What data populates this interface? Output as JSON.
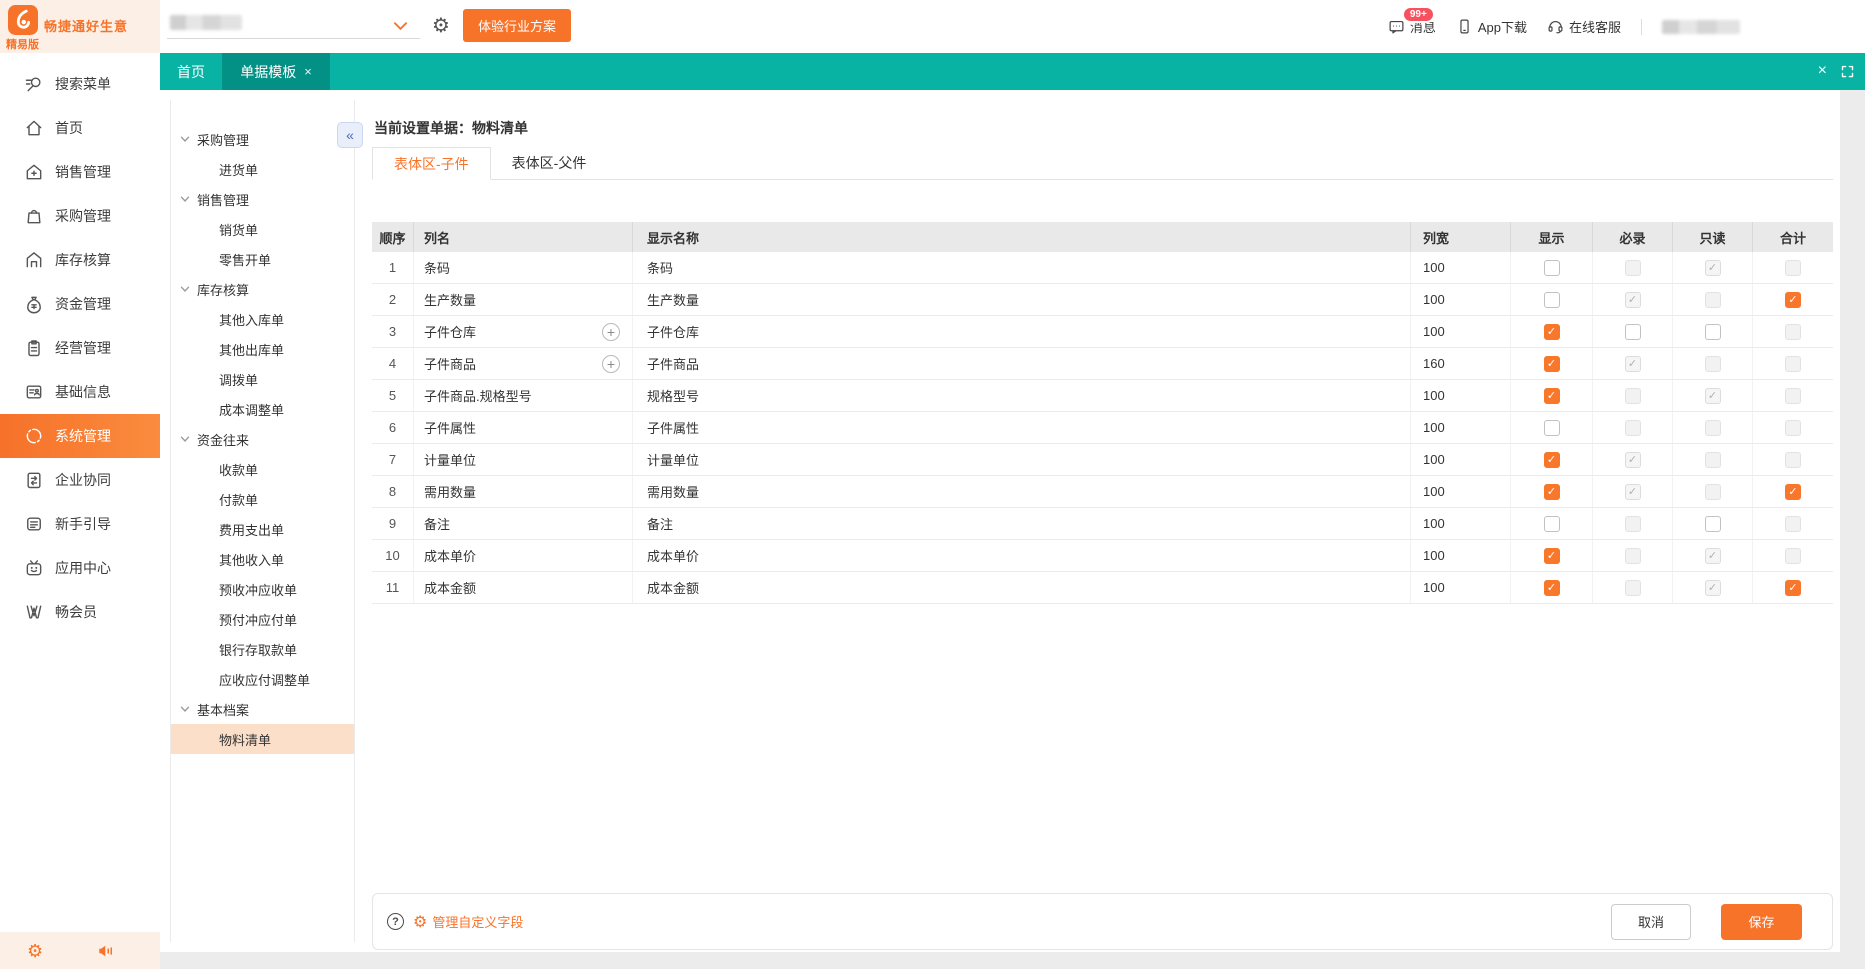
{
  "colors": {
    "accent_orange": "#f8732a",
    "teal_bar": "#08b3a4",
    "teal_active_tab": "#049185",
    "badge_red": "#f7515f",
    "selected_tree_bg": "#fcdfc9",
    "table_header_bg": "#e9e9e9",
    "checkbox_checked": "#f8772b"
  },
  "brand": {
    "name": "畅捷通好生意",
    "edition": "精易版"
  },
  "topbar": {
    "experience_button": "体验行业方案",
    "messages_label": "消息",
    "messages_badge": "99+",
    "app_download_label": "App下载",
    "support_label": "在线客服"
  },
  "workspace_tabs": {
    "home": "首页",
    "current": "单据模板",
    "close_glyph": "×"
  },
  "sidebar": {
    "items": [
      {
        "icon": "search",
        "label": "搜索菜单",
        "active": false
      },
      {
        "icon": "home",
        "label": "首页",
        "active": false
      },
      {
        "icon": "sales",
        "label": "销售管理",
        "active": false
      },
      {
        "icon": "purchase",
        "label": "采购管理",
        "active": false
      },
      {
        "icon": "inventory",
        "label": "库存核算",
        "active": false
      },
      {
        "icon": "funds",
        "label": "资金管理",
        "active": false
      },
      {
        "icon": "business",
        "label": "经营管理",
        "active": false
      },
      {
        "icon": "info",
        "label": "基础信息",
        "active": false
      },
      {
        "icon": "system",
        "label": "系统管理",
        "active": true
      },
      {
        "icon": "collab",
        "label": "企业协同",
        "active": false
      },
      {
        "icon": "guide",
        "label": "新手引导",
        "active": false
      },
      {
        "icon": "apps",
        "label": "应用中心",
        "active": false
      },
      {
        "icon": "member",
        "label": "畅会员",
        "active": false
      }
    ]
  },
  "tree": {
    "collapse_glyph": "«",
    "groups": [
      {
        "label": "采购管理",
        "children": [
          {
            "label": "进货单",
            "selected": false
          }
        ]
      },
      {
        "label": "销售管理",
        "children": [
          {
            "label": "销货单",
            "selected": false
          },
          {
            "label": "零售开单",
            "selected": false
          }
        ]
      },
      {
        "label": "库存核算",
        "children": [
          {
            "label": "其他入库单",
            "selected": false
          },
          {
            "label": "其他出库单",
            "selected": false
          },
          {
            "label": "调拨单",
            "selected": false
          },
          {
            "label": "成本调整单",
            "selected": false
          }
        ]
      },
      {
        "label": "资金往来",
        "children": [
          {
            "label": "收款单",
            "selected": false
          },
          {
            "label": "付款单",
            "selected": false
          },
          {
            "label": "费用支出单",
            "selected": false
          },
          {
            "label": "其他收入单",
            "selected": false
          },
          {
            "label": "预收冲应收单",
            "selected": false
          },
          {
            "label": "预付冲应付单",
            "selected": false
          },
          {
            "label": "银行存取款单",
            "selected": false
          },
          {
            "label": "应收应付调整单",
            "selected": false
          }
        ]
      },
      {
        "label": "基本档案",
        "children": [
          {
            "label": "物料清单",
            "selected": true
          }
        ]
      }
    ]
  },
  "main": {
    "title_label": "当前设置单据：",
    "title_value": "物料清单",
    "tabs": [
      {
        "label": "表体区-子件",
        "active": true
      },
      {
        "label": "表体区-父件",
        "active": false
      }
    ]
  },
  "table": {
    "headers": [
      "顺序",
      "列名",
      "显示名称",
      "列宽",
      "显示",
      "必录",
      "只读",
      "合计"
    ],
    "check_columns": [
      "show",
      "required",
      "readonly",
      "total"
    ],
    "rows": [
      {
        "seq": "1",
        "name": "条码",
        "add": false,
        "display": "条码",
        "width": "100",
        "checks": [
          "off",
          "dis-off",
          "dis-on",
          "dis-off"
        ]
      },
      {
        "seq": "2",
        "name": "生产数量",
        "add": false,
        "display": "生产数量",
        "width": "100",
        "checks": [
          "off",
          "dis-on",
          "dis-off",
          "on"
        ]
      },
      {
        "seq": "3",
        "name": "子件仓库",
        "add": true,
        "display": "子件仓库",
        "width": "100",
        "checks": [
          "on",
          "off",
          "off",
          "dis-off"
        ]
      },
      {
        "seq": "4",
        "name": "子件商品",
        "add": true,
        "display": "子件商品",
        "width": "160",
        "checks": [
          "on",
          "dis-on",
          "dis-off",
          "dis-off"
        ]
      },
      {
        "seq": "5",
        "name": "子件商品.规格型号",
        "add": false,
        "display": "规格型号",
        "width": "100",
        "checks": [
          "on",
          "dis-off",
          "dis-on",
          "dis-off"
        ]
      },
      {
        "seq": "6",
        "name": "子件属性",
        "add": false,
        "display": "子件属性",
        "width": "100",
        "checks": [
          "off",
          "dis-off",
          "dis-off",
          "dis-off"
        ]
      },
      {
        "seq": "7",
        "name": "计量单位",
        "add": false,
        "display": "计量单位",
        "width": "100",
        "checks": [
          "on",
          "dis-on",
          "dis-off",
          "dis-off"
        ]
      },
      {
        "seq": "8",
        "name": "需用数量",
        "add": false,
        "display": "需用数量",
        "width": "100",
        "checks": [
          "on",
          "dis-on",
          "dis-off",
          "on"
        ]
      },
      {
        "seq": "9",
        "name": "备注",
        "add": false,
        "display": "备注",
        "width": "100",
        "checks": [
          "off",
          "dis-off",
          "off",
          "dis-off"
        ]
      },
      {
        "seq": "10",
        "name": "成本单价",
        "add": false,
        "display": "成本单价",
        "width": "100",
        "checks": [
          "on",
          "dis-off",
          "dis-on",
          "dis-off"
        ]
      },
      {
        "seq": "11",
        "name": "成本金额",
        "add": false,
        "display": "成本金额",
        "width": "100",
        "checks": [
          "on",
          "dis-off",
          "dis-on",
          "on"
        ]
      }
    ]
  },
  "footer": {
    "help_glyph": "?",
    "manage_label": "管理自定义字段",
    "cancel_label": "取消",
    "save_label": "保存"
  }
}
